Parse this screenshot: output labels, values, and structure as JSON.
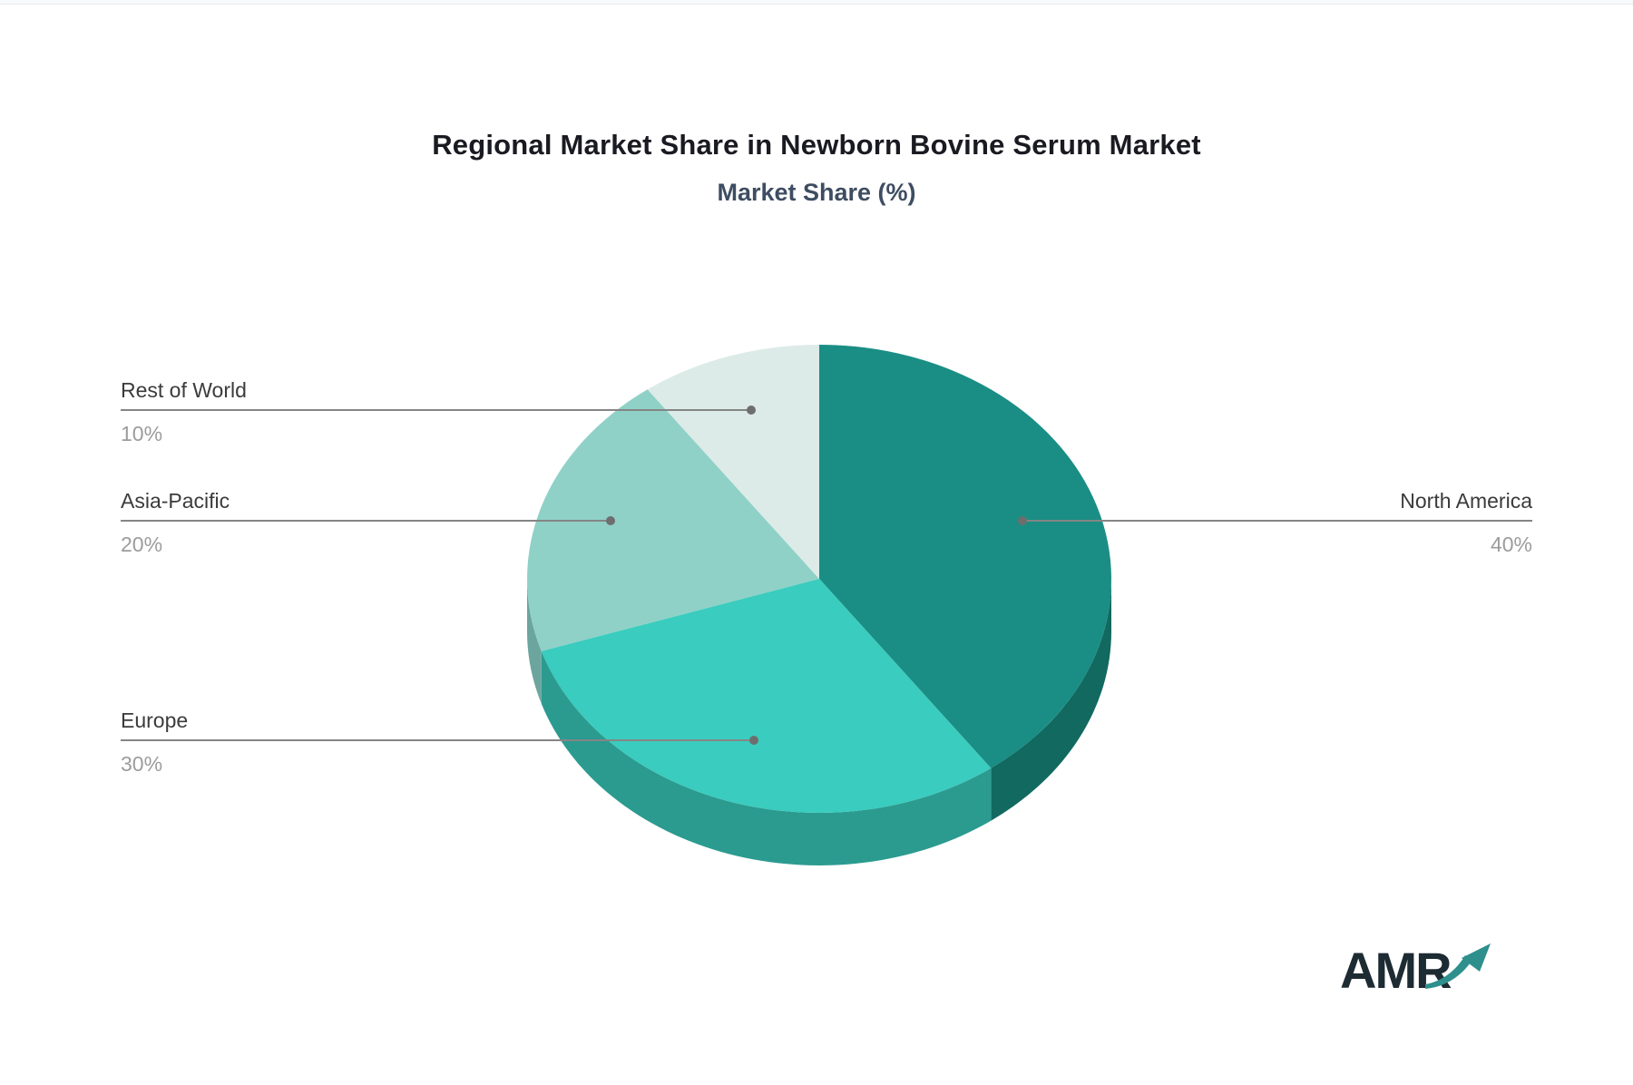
{
  "page": {
    "background": "#ffffff"
  },
  "header": {
    "title": "Regional Market Share in Newborn Bovine Serum Market",
    "subtitle": "Market Share (%)"
  },
  "chart_data": {
    "type": "pie",
    "style": "3d-extruded",
    "title": "Regional Market Share in Newborn Bovine Serum Market",
    "subtitle": "Market Share (%)",
    "unit": "%",
    "direction": "clockwise",
    "start_angle_deg": 0,
    "legend_position": "none",
    "labels_layout": "leader-line-callouts",
    "slices": [
      {
        "label": "North America",
        "value": 40,
        "pct_label": "40%",
        "color": "#1a8e84",
        "side_color": "#116960",
        "callout_side": "right"
      },
      {
        "label": "Europe",
        "value": 30,
        "pct_label": "30%",
        "color": "#3accbe",
        "side_color": "#2b9b90",
        "callout_side": "left"
      },
      {
        "label": "Asia-Pacific",
        "value": 20,
        "pct_label": "20%",
        "color": "#8fd1c7",
        "side_color": "#6ca59d",
        "callout_side": "left"
      },
      {
        "label": "Rest of World",
        "value": 10,
        "pct_label": "10%",
        "color": "#dcebe7",
        "side_color": "#c0dbd5",
        "callout_side": "left"
      }
    ],
    "leader_line_color": "#858585",
    "leader_dot_color": "#6e6e6e",
    "label_text_color": "#3b3b3b",
    "pct_text_color": "#9c9c9c"
  },
  "logo": {
    "text": "AMR",
    "text_color": "#1d2b33",
    "arrow_color": "#2e8f8c"
  }
}
